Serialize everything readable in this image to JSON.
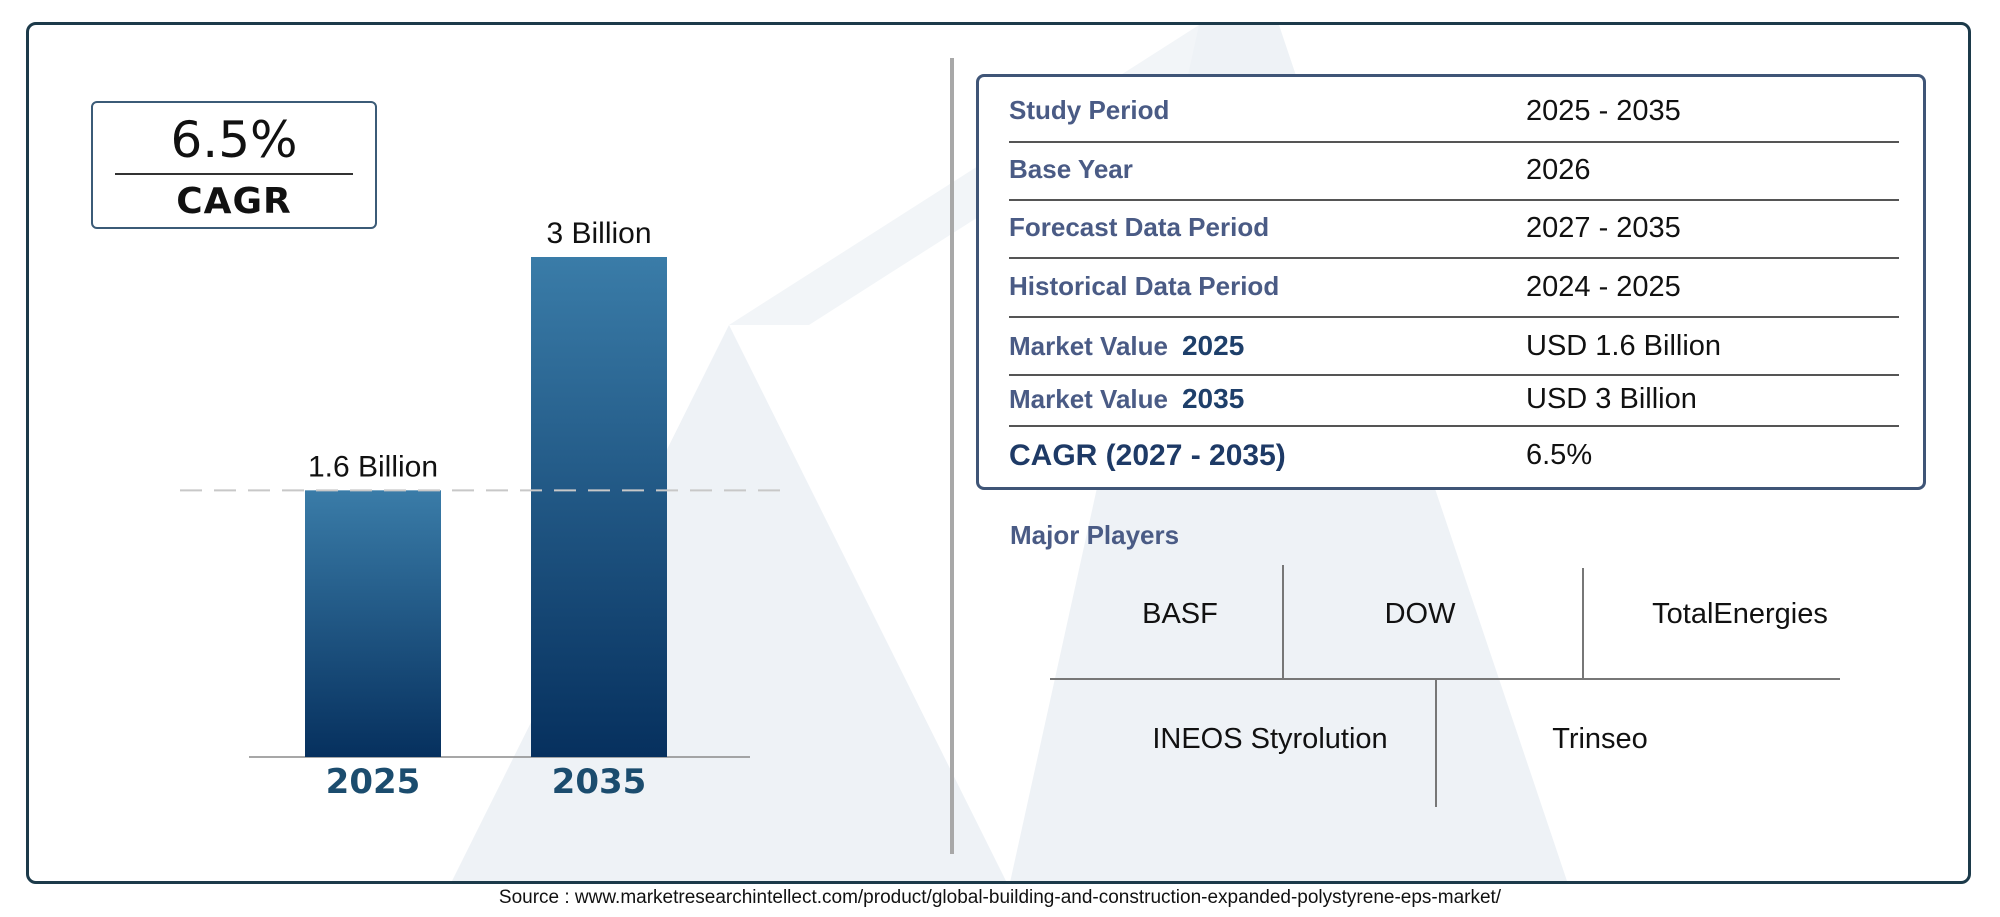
{
  "cagr_box": {
    "value": "6.5%",
    "label": "CAGR"
  },
  "chart_data": {
    "type": "bar",
    "categories": [
      "2025",
      "2035"
    ],
    "values": [
      1.6,
      3
    ],
    "data_labels": [
      "1.6 Billion",
      "3 Billion"
    ],
    "title": "",
    "xlabel": "",
    "ylabel": "",
    "ylim": [
      0,
      3
    ],
    "grid": false,
    "colors": {
      "bar_top": "#3a7ca8",
      "bar_bottom": "#06305e",
      "category_label": "#1b4c6e"
    }
  },
  "info_table": [
    {
      "label": "Study Period",
      "year": "",
      "value": "2025 - 2035"
    },
    {
      "label": "Base Year",
      "year": "",
      "value": "2026"
    },
    {
      "label": "Forecast Data Period",
      "year": "",
      "value": "2027 - 2035"
    },
    {
      "label": "Historical Data Period",
      "year": "",
      "value": "2024 - 2025"
    },
    {
      "label": "Market Value",
      "year": "2025",
      "value": "USD 1.6 Billion"
    },
    {
      "label": "Market Value",
      "year": "2035",
      "value": "USD 3 Billion"
    },
    {
      "label": "CAGR (2027 - 2035)",
      "year": "",
      "value": "6.5%"
    }
  ],
  "major_players": {
    "title": "Major Players",
    "companies": [
      "BASF",
      "DOW",
      "TotalEnergies",
      "INEOS Styrolution",
      "Trinseo"
    ]
  },
  "source": "Source : www.marketresearchintellect.com/product/global-building-and-construction-expanded-polystyrene-eps-market/"
}
